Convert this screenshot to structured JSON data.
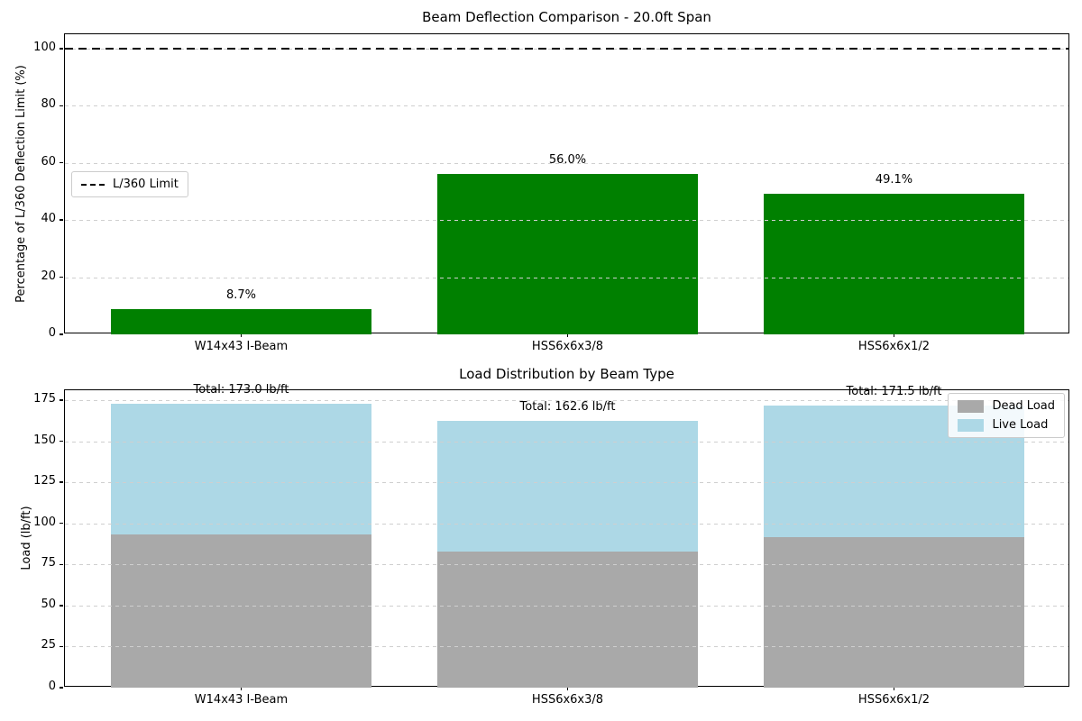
{
  "chart_data": [
    {
      "type": "bar",
      "title": "Beam Deflection Comparison - 20.0ft Span",
      "ylabel": "Percentage of L/360 Deflection Limit (%)",
      "xlabel": "",
      "categories": [
        "W14x43 I-Beam",
        "HSS6x6x3/8",
        "HSS6x6x1/2"
      ],
      "values": [
        8.7,
        56.0,
        49.1
      ],
      "bar_labels": [
        "8.7%",
        "56.0%",
        "49.1%"
      ],
      "bar_color": "#008000",
      "ytick_labels": [
        "0",
        "20",
        "40",
        "60",
        "80",
        "100"
      ],
      "ytick_values": [
        0,
        20,
        40,
        60,
        80,
        100
      ],
      "ylim": [
        0,
        105
      ],
      "grid": "horizontal dashed",
      "reference_line": {
        "value": 100,
        "style": "dashed",
        "color": "#000000",
        "label": "L/360 Limit"
      },
      "legend": {
        "position": "center-left",
        "items": [
          {
            "label": "L/360 Limit",
            "swatch": "dashed-line",
            "color": "#000000"
          }
        ]
      }
    },
    {
      "type": "stacked-bar",
      "title": "Load Distribution by Beam Type",
      "ylabel": "Load (lb/ft)",
      "xlabel": "",
      "categories": [
        "W14x43 I-Beam",
        "HSS6x6x3/8",
        "HSS6x6x1/2"
      ],
      "series": [
        {
          "name": "Dead Load",
          "color": "#a9a9a9",
          "values": [
            93.0,
            82.6,
            91.5
          ]
        },
        {
          "name": "Live Load",
          "color": "#add8e6",
          "values": [
            80.0,
            80.0,
            80.0
          ]
        }
      ],
      "stack_totals": [
        173.0,
        162.6,
        171.5
      ],
      "total_labels": [
        "Total: 173.0 lb/ft",
        "Total: 162.6 lb/ft",
        "Total: 171.5 lb/ft"
      ],
      "ytick_labels": [
        "0",
        "25",
        "50",
        "75",
        "100",
        "125",
        "150",
        "175"
      ],
      "ytick_values": [
        0,
        25,
        50,
        75,
        100,
        125,
        150,
        175
      ],
      "ylim": [
        0,
        181
      ],
      "grid": "horizontal dashed",
      "legend": {
        "position": "top-right",
        "items": [
          {
            "label": "Dead Load",
            "swatch": "patch",
            "color": "#a9a9a9"
          },
          {
            "label": "Live Load",
            "swatch": "patch",
            "color": "#add8e6"
          }
        ]
      }
    }
  ]
}
